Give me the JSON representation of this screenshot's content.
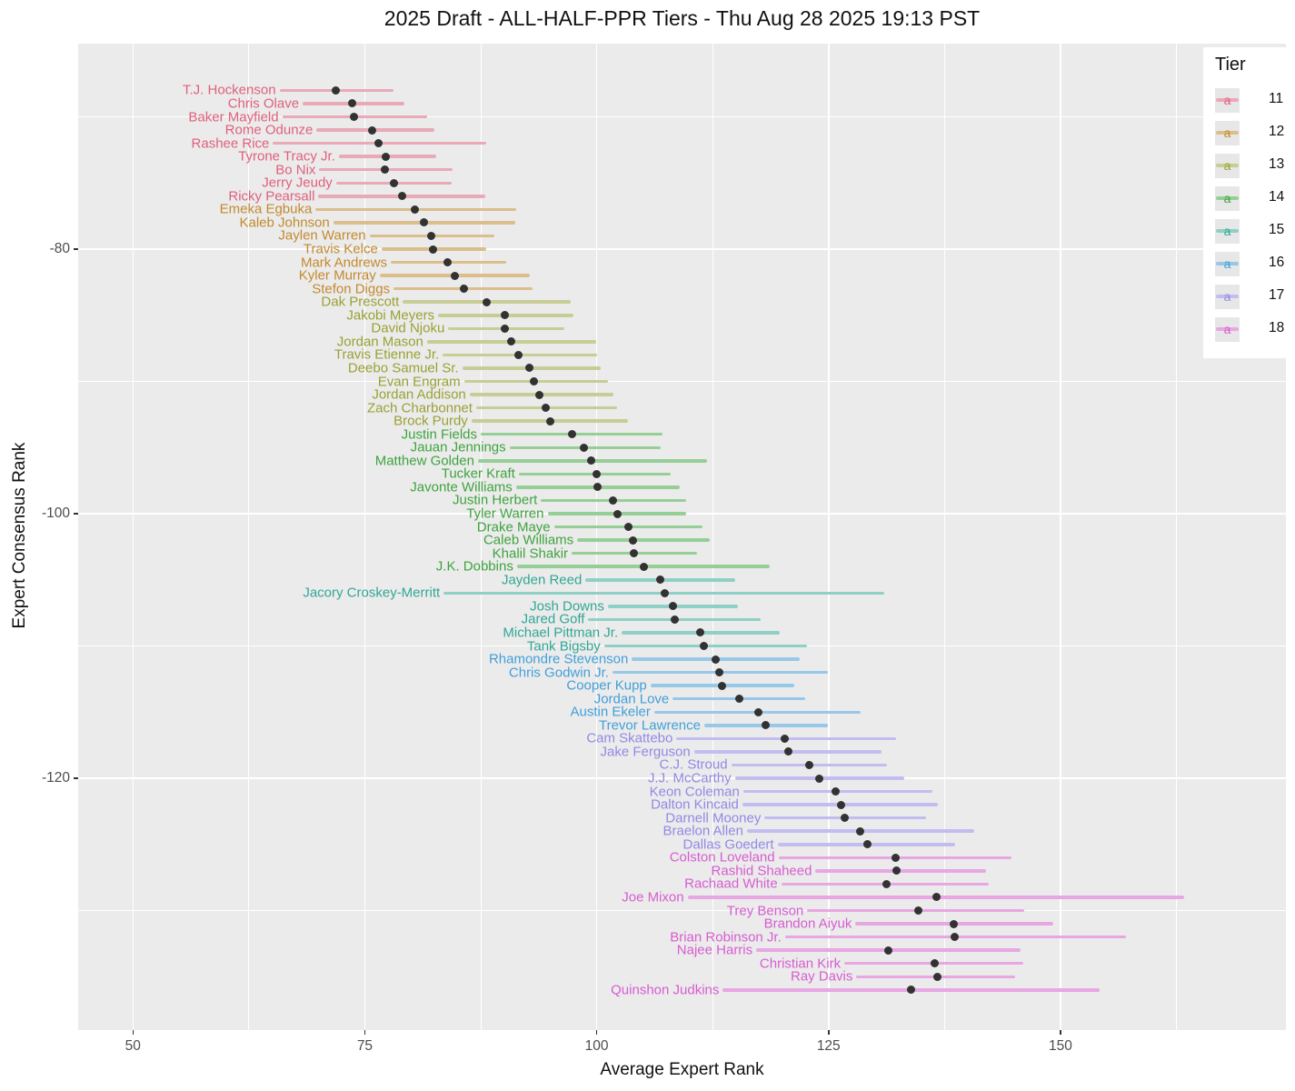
{
  "title": "2025 Draft - ALL-HALF-PPR Tiers - Thu Aug 28 2025 19:13 PST",
  "x_axis": {
    "label": "Average Expert Rank",
    "ticks": [
      "50",
      "75",
      "100",
      "125",
      "150"
    ],
    "tick_values": [
      50,
      75,
      100,
      125,
      150
    ],
    "minor_values": [
      62.5,
      87.5,
      112.5,
      137.5,
      162.5
    ]
  },
  "y_axis": {
    "label": "Expert Consensus Rank",
    "ticks": [
      "-80",
      "-100",
      "-120"
    ],
    "tick_values": [
      -80,
      -100,
      -120
    ],
    "minor_values": [
      -70,
      -90,
      -110,
      -130
    ]
  },
  "legend": {
    "title": "Tier",
    "entries": [
      {
        "label": "11",
        "text_color": "#E0607C",
        "bar_color": "#E9A9B7"
      },
      {
        "label": "12",
        "text_color": "#C38A2E",
        "bar_color": "#DCBE8C"
      },
      {
        "label": "13",
        "text_color": "#9AA134",
        "bar_color": "#C8CC95"
      },
      {
        "label": "14",
        "text_color": "#3EA33E",
        "bar_color": "#96CF96"
      },
      {
        "label": "15",
        "text_color": "#30A795",
        "bar_color": "#8FD0C6"
      },
      {
        "label": "16",
        "text_color": "#429FD9",
        "bar_color": "#97C8E8"
      },
      {
        "label": "17",
        "text_color": "#9189E6",
        "bar_color": "#C2BDF1"
      },
      {
        "label": "18",
        "text_color": "#D75CD1",
        "bar_color": "#E8A6E3"
      }
    ]
  },
  "chart_data": {
    "type": "scatter",
    "subtype": "dot_plot_with_horizontal_error_bars",
    "title": "2025 Draft - ALL-HALF-PPR Tiers - Thu Aug 28 2025 19:13 PST",
    "xlabel": "Average Expert Rank",
    "ylabel": "Expert Consensus Rank",
    "xlim": [
      44,
      174.5
    ],
    "ylim": [
      -139.5,
      -64.5
    ],
    "grid": true,
    "legend_position": "inside-top-right",
    "point_color": "#323232",
    "players": [
      {
        "name": "T.J. Hockenson",
        "tier": 11,
        "ecr": -68,
        "avg": 71.9,
        "min": 65.8,
        "max": 78.1
      },
      {
        "name": "Chris Olave",
        "tier": 11,
        "ecr": -69,
        "avg": 73.6,
        "min": 68.3,
        "max": 79.3
      },
      {
        "name": "Baker Mayfield",
        "tier": 11,
        "ecr": -70,
        "avg": 73.8,
        "min": 66.1,
        "max": 81.7
      },
      {
        "name": "Rome Odunze",
        "tier": 11,
        "ecr": -71,
        "avg": 75.8,
        "min": 69.8,
        "max": 82.5
      },
      {
        "name": "Rashee Rice",
        "tier": 11,
        "ecr": -72,
        "avg": 76.5,
        "min": 65.1,
        "max": 88.1
      },
      {
        "name": "Tyrone Tracy Jr.",
        "tier": 11,
        "ecr": -73,
        "avg": 77.3,
        "min": 72.2,
        "max": 82.7
      },
      {
        "name": "Bo Nix",
        "tier": 11,
        "ecr": -74,
        "avg": 77.2,
        "min": 70.1,
        "max": 84.5
      },
      {
        "name": "Jerry Jeudy",
        "tier": 11,
        "ecr": -75,
        "avg": 78.1,
        "min": 71.9,
        "max": 84.4
      },
      {
        "name": "Ricky Pearsall",
        "tier": 11,
        "ecr": -76,
        "avg": 79.0,
        "min": 70.0,
        "max": 88.0
      },
      {
        "name": "Emeka Egbuka",
        "tier": 12,
        "ecr": -77,
        "avg": 80.4,
        "min": 69.7,
        "max": 91.3
      },
      {
        "name": "Kaleb Johnson",
        "tier": 12,
        "ecr": -78,
        "avg": 81.4,
        "min": 71.6,
        "max": 91.2
      },
      {
        "name": "Jaylen Warren",
        "tier": 12,
        "ecr": -79,
        "avg": 82.2,
        "min": 75.5,
        "max": 89.0
      },
      {
        "name": "Travis Kelce",
        "tier": 12,
        "ecr": -80,
        "avg": 82.4,
        "min": 76.8,
        "max": 88.1
      },
      {
        "name": "Mark Andrews",
        "tier": 12,
        "ecr": -81,
        "avg": 83.9,
        "min": 77.8,
        "max": 90.2
      },
      {
        "name": "Kyler Murray",
        "tier": 12,
        "ecr": -82,
        "avg": 84.7,
        "min": 76.6,
        "max": 92.8
      },
      {
        "name": "Stefon Diggs",
        "tier": 12,
        "ecr": -83,
        "avg": 85.7,
        "min": 78.1,
        "max": 93.1
      },
      {
        "name": "Dak Prescott",
        "tier": 13,
        "ecr": -84,
        "avg": 88.1,
        "min": 79.1,
        "max": 97.2
      },
      {
        "name": "Jakobi Meyers",
        "tier": 13,
        "ecr": -85,
        "avg": 90.1,
        "min": 82.9,
        "max": 97.5
      },
      {
        "name": "David Njoku",
        "tier": 13,
        "ecr": -86,
        "avg": 90.1,
        "min": 84.0,
        "max": 96.5
      },
      {
        "name": "Jordan Mason",
        "tier": 13,
        "ecr": -87,
        "avg": 90.8,
        "min": 81.7,
        "max": 99.9
      },
      {
        "name": "Travis Etienne Jr.",
        "tier": 13,
        "ecr": -88,
        "avg": 91.6,
        "min": 83.4,
        "max": 100.0
      },
      {
        "name": "Deebo Samuel Sr.",
        "tier": 13,
        "ecr": -89,
        "avg": 92.7,
        "min": 85.5,
        "max": 100.4
      },
      {
        "name": "Evan Engram",
        "tier": 13,
        "ecr": -90,
        "avg": 93.2,
        "min": 85.7,
        "max": 101.2
      },
      {
        "name": "Jordan Addison",
        "tier": 13,
        "ecr": -91,
        "avg": 93.8,
        "min": 86.3,
        "max": 101.8
      },
      {
        "name": "Zach Charbonnet",
        "tier": 13,
        "ecr": -92,
        "avg": 94.5,
        "min": 87.0,
        "max": 102.2
      },
      {
        "name": "Brock Purdy",
        "tier": 13,
        "ecr": -93,
        "avg": 95.0,
        "min": 86.5,
        "max": 103.4
      },
      {
        "name": "Justin Fields",
        "tier": 14,
        "ecr": -94,
        "avg": 97.3,
        "min": 87.5,
        "max": 107.1
      },
      {
        "name": "Jauan Jennings",
        "tier": 14,
        "ecr": -95,
        "avg": 98.6,
        "min": 90.6,
        "max": 106.9
      },
      {
        "name": "Matthew Golden",
        "tier": 14,
        "ecr": -96,
        "avg": 99.4,
        "min": 87.2,
        "max": 111.9
      },
      {
        "name": "Tucker Kraft",
        "tier": 14,
        "ecr": -97,
        "avg": 100.0,
        "min": 91.6,
        "max": 108.0
      },
      {
        "name": "Javonte Williams",
        "tier": 14,
        "ecr": -98,
        "avg": 100.1,
        "min": 91.3,
        "max": 109.0
      },
      {
        "name": "Justin Herbert",
        "tier": 14,
        "ecr": -99,
        "avg": 101.8,
        "min": 94.0,
        "max": 109.6
      },
      {
        "name": "Tyler Warren",
        "tier": 14,
        "ecr": -100,
        "avg": 102.2,
        "min": 94.7,
        "max": 109.6
      },
      {
        "name": "Drake Maye",
        "tier": 14,
        "ecr": -101,
        "avg": 103.4,
        "min": 95.4,
        "max": 111.4
      },
      {
        "name": "Caleb Williams",
        "tier": 14,
        "ecr": -102,
        "avg": 103.9,
        "min": 97.9,
        "max": 112.2
      },
      {
        "name": "Khalil Shakir",
        "tier": 14,
        "ecr": -103,
        "avg": 104.0,
        "min": 97.3,
        "max": 110.8
      },
      {
        "name": "J.K. Dobbins",
        "tier": 14,
        "ecr": -104,
        "avg": 105.1,
        "min": 91.4,
        "max": 118.7
      },
      {
        "name": "Jayden Reed",
        "tier": 15,
        "ecr": -105,
        "avg": 106.8,
        "min": 98.8,
        "max": 114.9
      },
      {
        "name": "Jacory Croskey-Merritt",
        "tier": 15,
        "ecr": -106,
        "avg": 107.3,
        "min": 83.5,
        "max": 131.0
      },
      {
        "name": "Josh Downs",
        "tier": 15,
        "ecr": -107,
        "avg": 108.2,
        "min": 101.2,
        "max": 115.2
      },
      {
        "name": "Jared Goff",
        "tier": 15,
        "ecr": -108,
        "avg": 108.4,
        "min": 99.1,
        "max": 117.7
      },
      {
        "name": "Michael Pittman Jr.",
        "tier": 15,
        "ecr": -109,
        "avg": 111.2,
        "min": 102.7,
        "max": 119.7
      },
      {
        "name": "Tank Bigsby",
        "tier": 15,
        "ecr": -110,
        "avg": 111.6,
        "min": 100.8,
        "max": 122.7
      },
      {
        "name": "Rhamondre Stevenson",
        "tier": 16,
        "ecr": -111,
        "avg": 112.8,
        "min": 103.8,
        "max": 121.9
      },
      {
        "name": "Chris Godwin Jr.",
        "tier": 16,
        "ecr": -112,
        "avg": 113.2,
        "min": 101.7,
        "max": 124.9
      },
      {
        "name": "Cooper Kupp",
        "tier": 16,
        "ecr": -113,
        "avg": 113.5,
        "min": 105.8,
        "max": 121.3
      },
      {
        "name": "Jordan Love",
        "tier": 16,
        "ecr": -114,
        "avg": 115.4,
        "min": 108.2,
        "max": 122.5
      },
      {
        "name": "Austin Ekeler",
        "tier": 16,
        "ecr": -115,
        "avg": 117.4,
        "min": 106.2,
        "max": 128.5
      },
      {
        "name": "Trevor Lawrence",
        "tier": 16,
        "ecr": -116,
        "avg": 118.2,
        "min": 111.6,
        "max": 124.9
      },
      {
        "name": "Cam Skattebo",
        "tier": 17,
        "ecr": -117,
        "avg": 120.3,
        "min": 108.6,
        "max": 132.3
      },
      {
        "name": "Jake Ferguson",
        "tier": 17,
        "ecr": -118,
        "avg": 120.7,
        "min": 110.5,
        "max": 130.7
      },
      {
        "name": "C.J. Stroud",
        "tier": 17,
        "ecr": -119,
        "avg": 122.9,
        "min": 114.5,
        "max": 131.3
      },
      {
        "name": "J.J. McCarthy",
        "tier": 17,
        "ecr": -120,
        "avg": 124.0,
        "min": 114.9,
        "max": 133.2
      },
      {
        "name": "Keon Coleman",
        "tier": 17,
        "ecr": -121,
        "avg": 125.8,
        "min": 115.8,
        "max": 136.2
      },
      {
        "name": "Dalton Kincaid",
        "tier": 17,
        "ecr": -122,
        "avg": 126.3,
        "min": 115.7,
        "max": 136.8
      },
      {
        "name": "Darnell Mooney",
        "tier": 17,
        "ecr": -123,
        "avg": 126.7,
        "min": 118.1,
        "max": 135.5
      },
      {
        "name": "Braelon Allen",
        "tier": 17,
        "ecr": -124,
        "avg": 128.4,
        "min": 116.2,
        "max": 140.7
      },
      {
        "name": "Dallas Goedert",
        "tier": 17,
        "ecr": -125,
        "avg": 129.2,
        "min": 119.5,
        "max": 138.6
      },
      {
        "name": "Colston Loveland",
        "tier": 18,
        "ecr": -126,
        "avg": 132.2,
        "min": 119.6,
        "max": 144.7
      },
      {
        "name": "Rashid Shaheed",
        "tier": 18,
        "ecr": -127,
        "avg": 132.3,
        "min": 123.6,
        "max": 142.0
      },
      {
        "name": "Rachaad White",
        "tier": 18,
        "ecr": -128,
        "avg": 131.2,
        "min": 119.9,
        "max": 142.3
      },
      {
        "name": "Joe Mixon",
        "tier": 18,
        "ecr": -129,
        "avg": 136.6,
        "min": 109.8,
        "max": 163.3
      },
      {
        "name": "Trey Benson",
        "tier": 18,
        "ecr": -130,
        "avg": 134.7,
        "min": 122.7,
        "max": 146.1
      },
      {
        "name": "Brandon Aiyuk",
        "tier": 18,
        "ecr": -131,
        "avg": 138.5,
        "min": 127.9,
        "max": 149.2
      },
      {
        "name": "Brian Robinson Jr.",
        "tier": 18,
        "ecr": -132,
        "avg": 138.6,
        "min": 120.3,
        "max": 157.1
      },
      {
        "name": "Najee Harris",
        "tier": 18,
        "ecr": -133,
        "avg": 131.4,
        "min": 117.2,
        "max": 145.7
      },
      {
        "name": "Christian Kirk",
        "tier": 18,
        "ecr": -134,
        "avg": 136.4,
        "min": 126.7,
        "max": 146.0
      },
      {
        "name": "Ray Davis",
        "tier": 18,
        "ecr": -135,
        "avg": 136.7,
        "min": 128.0,
        "max": 145.1
      },
      {
        "name": "Quinshon Judkins",
        "tier": 18,
        "ecr": -136,
        "avg": 133.9,
        "min": 113.6,
        "max": 154.2
      }
    ]
  }
}
